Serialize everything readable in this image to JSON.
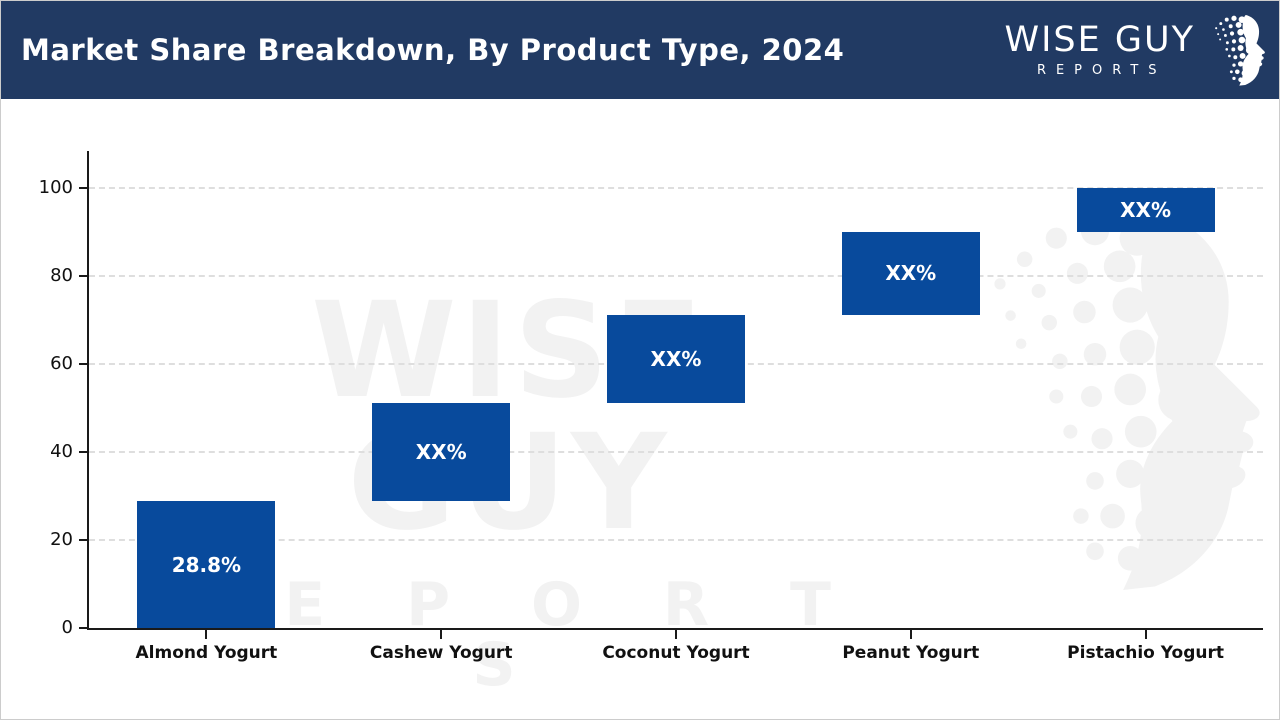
{
  "header": {
    "title": "Market Share Breakdown, By Product Type, 2024",
    "logo": {
      "line1": "WISE GUY",
      "line2": "REPORTS"
    }
  },
  "watermark": {
    "line1": "WISE GUY",
    "line2": "R E P O R T S"
  },
  "colors": {
    "header_bg": "#213A63",
    "bar": "#084A9C",
    "axis": "#1a1a1a",
    "grid": "#dedede",
    "watermark": "#f2f2f2",
    "border": "#cccccc"
  },
  "chart_data": {
    "type": "bar",
    "subtype": "waterfall",
    "title": "Market Share Breakdown, By Product Type, 2024",
    "categories": [
      "Almond Yogurt",
      "Cashew Yogurt",
      "Coconut Yogurt",
      "Peanut Yogurt",
      "Pistachio Yogurt"
    ],
    "bars": [
      {
        "category": "Almond Yogurt",
        "start": 0,
        "end": 28.8,
        "label": "28.8%"
      },
      {
        "category": "Cashew Yogurt",
        "start": 28.8,
        "end": 51,
        "label": "XX%"
      },
      {
        "category": "Coconut Yogurt",
        "start": 51,
        "end": 71,
        "label": "XX%"
      },
      {
        "category": "Peanut Yogurt",
        "start": 71,
        "end": 90,
        "label": "XX%"
      },
      {
        "category": "Pistachio Yogurt",
        "start": 90,
        "end": 100,
        "label": "XX%"
      }
    ],
    "yticks": [
      0,
      20,
      40,
      60,
      80,
      100
    ],
    "ylim": [
      0,
      105
    ],
    "xlabel": "",
    "ylabel": "",
    "grid": "horizontal-dashed",
    "legend": "none",
    "bar_color": "#084A9C",
    "bar_label_color": "#ffffff"
  }
}
